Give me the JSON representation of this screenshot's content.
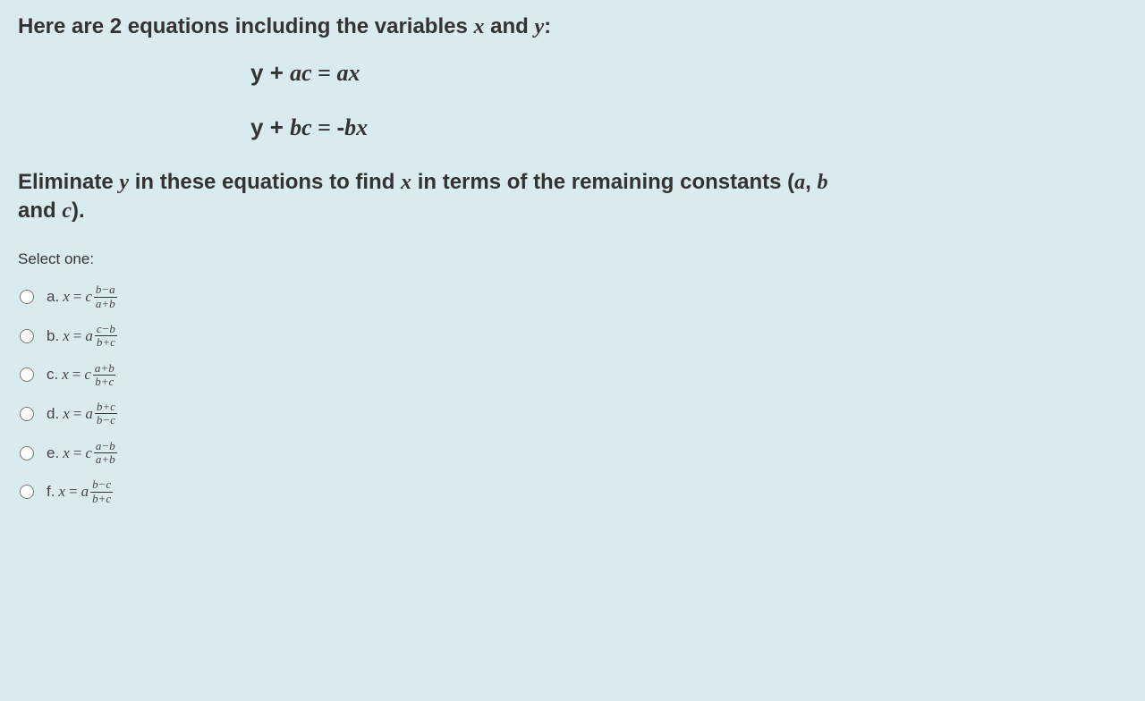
{
  "background_color": "#daebef",
  "text_color": "#333333",
  "prompt": {
    "line1_prefix": "Here are 2 equations including the variables ",
    "var_x": "x",
    "and": " and ",
    "var_y": "y",
    "colon": ":",
    "line2_part1": "Eliminate ",
    "line2_var1": "y",
    "line2_part2": " in these equations to find ",
    "line2_var2": "x",
    "line2_part3": " in terms of the remaining constants (",
    "line2_var3": "a",
    "line2_comma": ", ",
    "line2_var4": "b",
    "line2_part4": " and ",
    "line2_var5": "c",
    "line2_end": ")."
  },
  "equations": {
    "eq1": {
      "y": "y",
      "plus": " + ",
      "lhs": "ac",
      "eq": " = ",
      "rhs": "ax"
    },
    "eq2": {
      "y": "y",
      "plus": " + ",
      "lhs": "bc",
      "eq": " = ",
      "minus": "-",
      "rhs": "bx"
    }
  },
  "select_label": "Select one:",
  "options": [
    {
      "letter": "a.",
      "lhs": "x",
      "coef": "c",
      "num": "b−a",
      "den": "a+b"
    },
    {
      "letter": "b.",
      "lhs": "x",
      "coef": "a",
      "num": "c−b",
      "den": "b+c"
    },
    {
      "letter": "c.",
      "lhs": "x",
      "coef": "c",
      "num": "a+b",
      "den": "b+c"
    },
    {
      "letter": "d.",
      "lhs": "x",
      "coef": "a",
      "num": "b+c",
      "den": "b−c"
    },
    {
      "letter": "e.",
      "lhs": "x",
      "coef": "c",
      "num": "a−b",
      "den": "a+b"
    },
    {
      "letter": "f.",
      "lhs": "x",
      "coef": "a",
      "num": "b−c",
      "den": "b+c"
    }
  ]
}
